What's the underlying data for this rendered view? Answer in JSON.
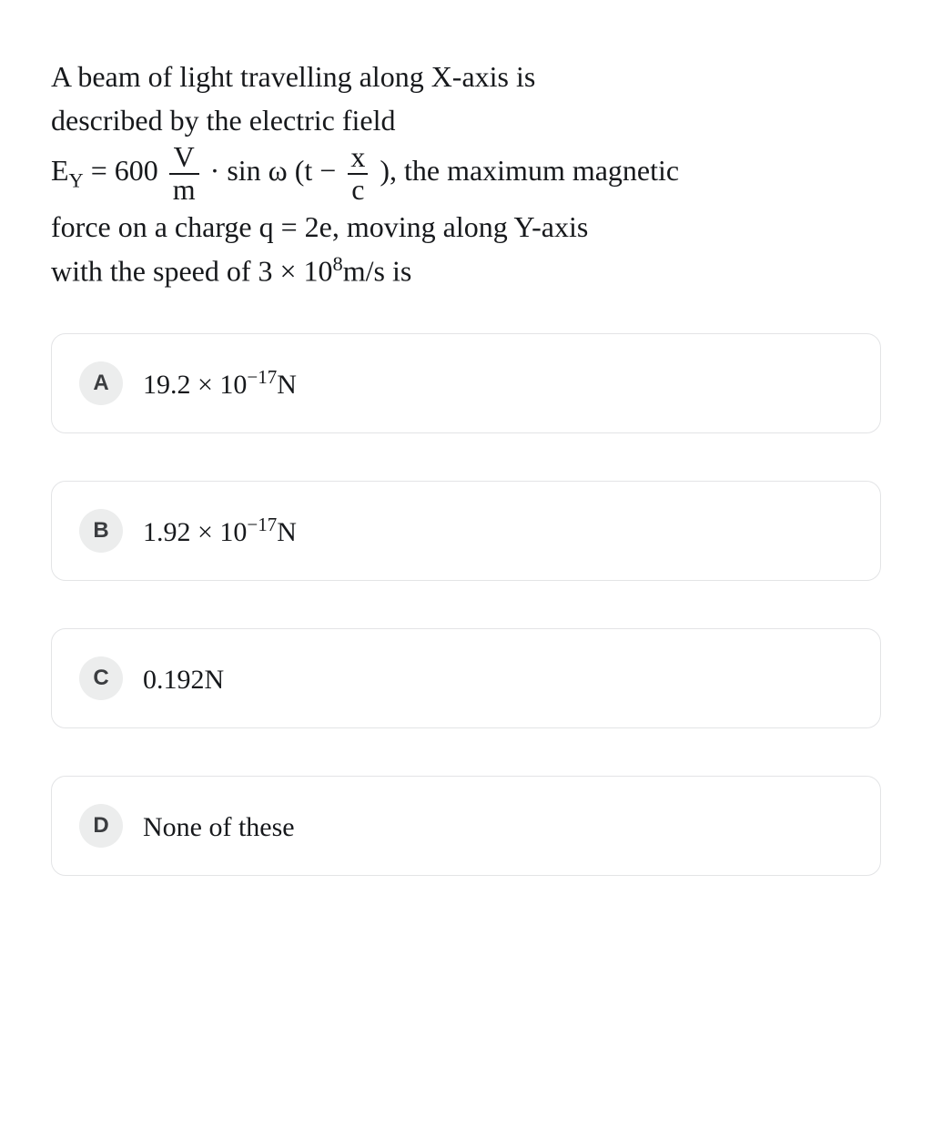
{
  "colors": {
    "text": "#17191c",
    "badge_bg": "#eceded",
    "badge_fg": "#3b3d40",
    "card_border": "#e3e4e6",
    "background": "#ffffff"
  },
  "question": {
    "line1": "A beam of light travelling along X-axis is",
    "line2": "described by the electric field",
    "eq_lhs": "E",
    "eq_sub": "Y",
    "eq_eq_600": " = 600",
    "frac1_num": "V",
    "frac1_den": "m",
    "eq_mid": " · sin ω (t − ",
    "frac2_num": "x",
    "frac2_den": "c",
    "eq_close": "), the maximum magnetic",
    "line4": "force on a charge q = 2e, moving along Y-axis",
    "line5_a": "with the speed of 3 × 10",
    "line5_sup": "8",
    "line5_b": "m/s is"
  },
  "options": [
    {
      "letter": "A",
      "prefix": "19.2 × 10",
      "sup": "−17",
      "suffix": "N"
    },
    {
      "letter": "B",
      "prefix": "1.92 × 10",
      "sup": "−17",
      "suffix": "N"
    },
    {
      "letter": "C",
      "prefix": "0.192N",
      "sup": "",
      "suffix": ""
    },
    {
      "letter": "D",
      "prefix": "None of these",
      "sup": "",
      "suffix": ""
    }
  ]
}
